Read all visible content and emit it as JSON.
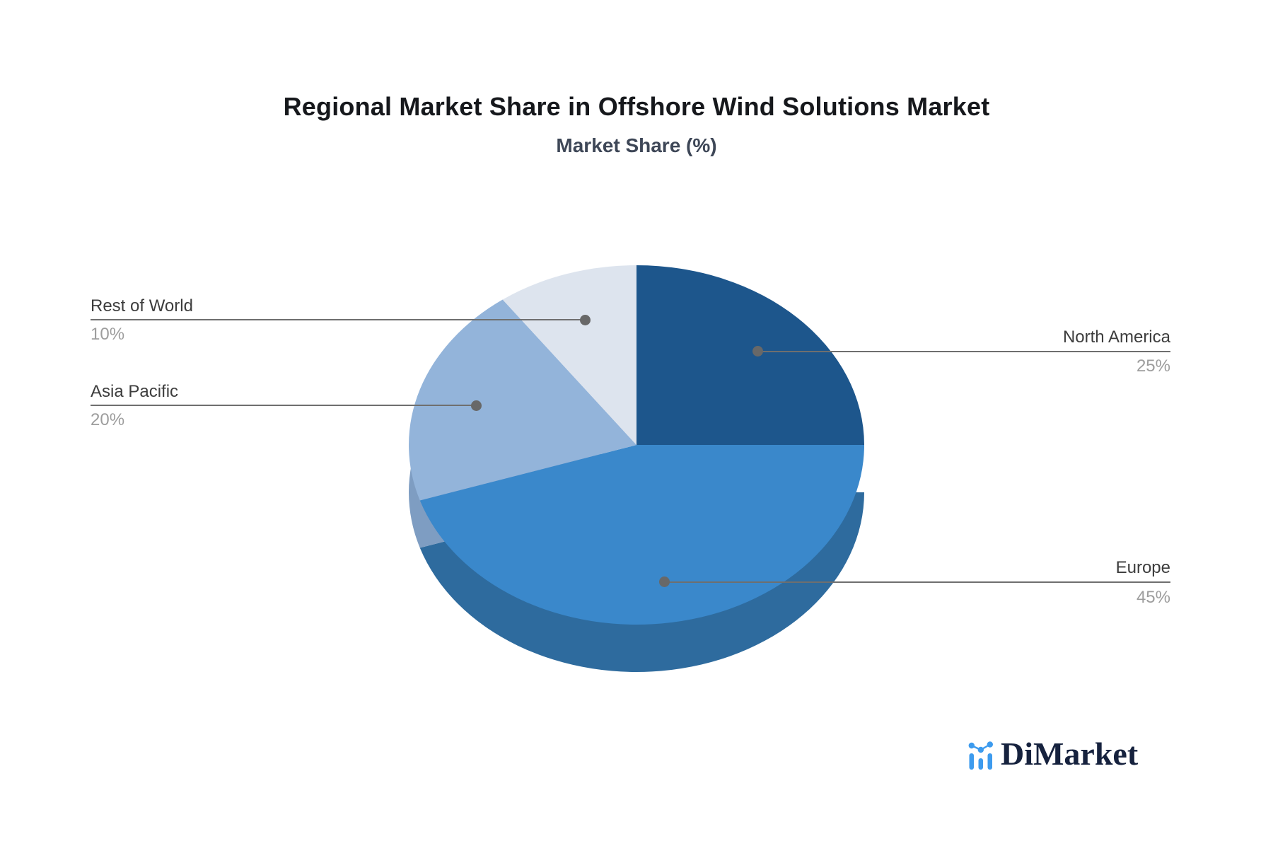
{
  "title": "Regional Market Share in Offshore Wind Solutions Market",
  "subtitle": "Market Share (%)",
  "chart_data": {
    "type": "pie",
    "title": "Regional Market Share in Offshore Wind Solutions Market",
    "subtitle": "Market Share (%)",
    "unit": "%",
    "effect": "3d",
    "direction": "clockwise",
    "start_angle_deg": 0,
    "total": 100,
    "slices": [
      {
        "label": "North America",
        "value": 25,
        "pct_label": "25%",
        "color": "#1d568c",
        "rim_color": "#16436e"
      },
      {
        "label": "Europe",
        "value": 45,
        "pct_label": "45%",
        "color": "#3a88cb",
        "rim_color": "#2e6b9e"
      },
      {
        "label": "Asia Pacific",
        "value": 20,
        "pct_label": "20%",
        "color": "#93b4da",
        "rim_color": "#7e9dc2"
      },
      {
        "label": "Rest of World",
        "value": 10,
        "pct_label": "10%",
        "color": "#dde4ee",
        "rim_color": "#bcc8d8"
      }
    ],
    "legend": "none",
    "data_labels": "leader lines with name above line and percent below"
  },
  "logo": {
    "text": "DiMarket",
    "icon": "bar-chart-trendline-icon",
    "icon_color": "#3d9bee",
    "text_color": "#16223e"
  },
  "colors": {
    "background": "#ffffff",
    "title_text": "#16181c",
    "subtitle_text": "#3e4757",
    "label_text": "#3d3d3d",
    "value_text": "#9d9d9d",
    "leader_line": "#6f6f6f"
  }
}
